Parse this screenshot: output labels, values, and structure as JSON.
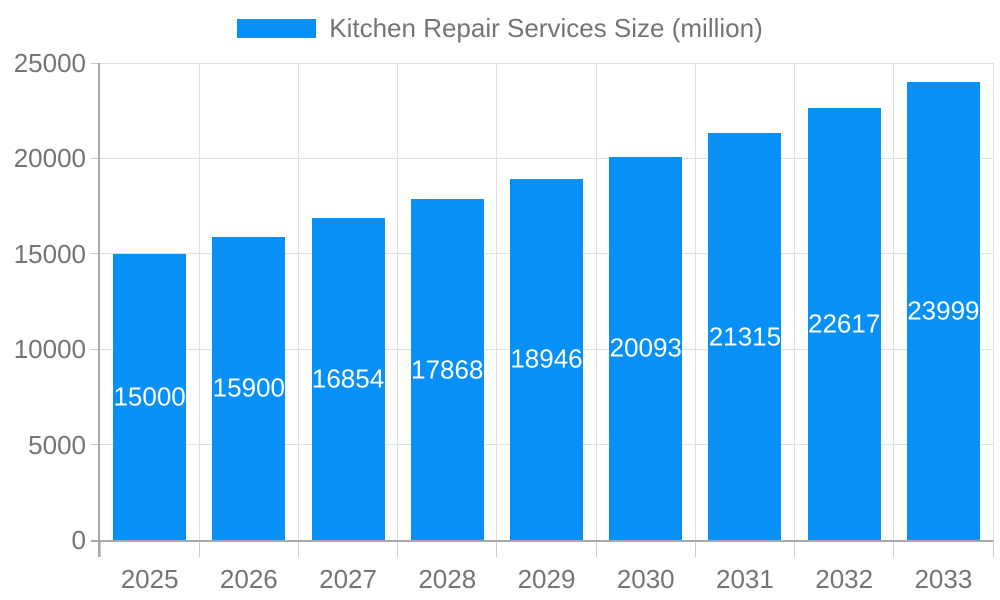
{
  "chart_data": {
    "type": "bar",
    "title": "Kitchen Repair Services Size (million)",
    "legend": [
      "Kitchen Repair Services Size (million)"
    ],
    "legend_position": "top-center",
    "categories": [
      "2025",
      "2026",
      "2027",
      "2028",
      "2029",
      "2030",
      "2031",
      "2032",
      "2033"
    ],
    "values": [
      15000,
      15900,
      16854,
      17868,
      18946,
      20093,
      21315,
      22617,
      23999
    ],
    "xlabel": "",
    "ylabel": "",
    "ylim": [
      0,
      25000
    ],
    "yticks": [
      0,
      5000,
      10000,
      15000,
      20000,
      25000
    ],
    "grid": true,
    "data_labels": "white, centered vertically inside bars",
    "colors": {
      "bar": "#0690f8",
      "gridline": "#e0e0e0",
      "axis": "#a8a8a8",
      "tick": "#c9c9c9",
      "axis_text": "#757575",
      "legend_text": "#757575",
      "value_label_text": "#ffffff",
      "background": "#ffffff"
    }
  }
}
